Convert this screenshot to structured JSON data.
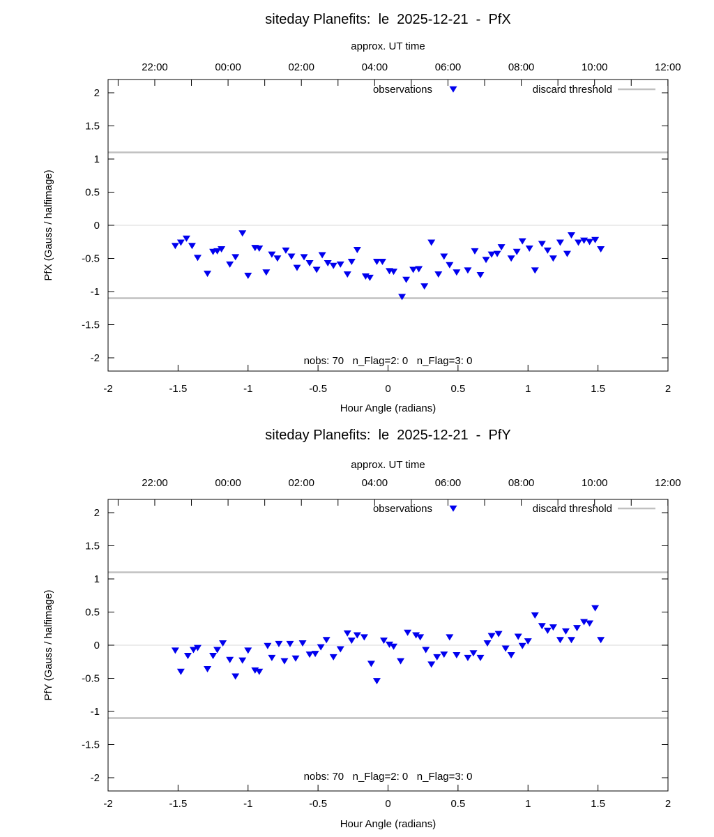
{
  "page": {
    "background": "#ffffff"
  },
  "chart_data": [
    {
      "type": "scatter",
      "title": "siteday Planefits:  le  2025-12-21  -  PfX",
      "top_axis": {
        "label": "approx. UT time",
        "tick_labels": [
          "22:00",
          "00:00",
          "02:00",
          "04:00",
          "06:00",
          "08:00",
          "10:00",
          "12:00"
        ]
      },
      "xlabel": "Hour Angle (radians)",
      "ylabel": "PfX (Gauss / halfimage)",
      "xlim": [
        -2,
        2
      ],
      "ylim": [
        -2.2,
        2.2
      ],
      "x_ticks": [
        -2,
        -1.5,
        -1,
        -0.5,
        0,
        0.5,
        1,
        1.5,
        2
      ],
      "x_tick_labels": [
        "-2",
        "-1.5",
        "-1",
        "-0.5",
        "0",
        "0.5",
        "1",
        "1.5",
        "2"
      ],
      "y_ticks": [
        2,
        1.5,
        1,
        0.5,
        0,
        -0.5,
        -1,
        -1.5,
        -2
      ],
      "y_tick_labels": [
        "2",
        "1.5",
        "1",
        "0.5",
        "0",
        "-0.5",
        "-1",
        "-1.5",
        "-2"
      ],
      "legend": [
        {
          "label": "observations",
          "swatch": "triangle-down-marker"
        },
        {
          "label": "discard threshold",
          "swatch": "gray-line"
        }
      ],
      "stats_label": "nobs: 70   n_Flag=2: 0   n_Flag=3: 0",
      "discard_thresholds": [
        1.1,
        -1.1
      ],
      "zero_line": 0,
      "marker_color": "#0000ee",
      "threshold_color": "#c0c0c0",
      "zero_line_color": "#d9d9d9",
      "grid": "off",
      "points": [
        [
          -1.52,
          -0.31
        ],
        [
          -1.48,
          -0.26
        ],
        [
          -1.44,
          -0.2
        ],
        [
          -1.4,
          -0.31
        ],
        [
          -1.36,
          -0.49
        ],
        [
          -1.29,
          -0.73
        ],
        [
          -1.25,
          -0.4
        ],
        [
          -1.22,
          -0.39
        ],
        [
          -1.19,
          -0.36
        ],
        [
          -1.13,
          -0.59
        ],
        [
          -1.09,
          -0.48
        ],
        [
          -1.04,
          -0.12
        ],
        [
          -1.0,
          -0.76
        ],
        [
          -0.95,
          -0.34
        ],
        [
          -0.92,
          -0.35
        ],
        [
          -0.87,
          -0.71
        ],
        [
          -0.83,
          -0.44
        ],
        [
          -0.79,
          -0.5
        ],
        [
          -0.73,
          -0.38
        ],
        [
          -0.69,
          -0.47
        ],
        [
          -0.65,
          -0.64
        ],
        [
          -0.6,
          -0.48
        ],
        [
          -0.56,
          -0.57
        ],
        [
          -0.51,
          -0.67
        ],
        [
          -0.47,
          -0.45
        ],
        [
          -0.43,
          -0.57
        ],
        [
          -0.39,
          -0.61
        ],
        [
          -0.34,
          -0.59
        ],
        [
          -0.29,
          -0.74
        ],
        [
          -0.26,
          -0.55
        ],
        [
          -0.22,
          -0.37
        ],
        [
          -0.16,
          -0.77
        ],
        [
          -0.13,
          -0.79
        ],
        [
          -0.08,
          -0.55
        ],
        [
          -0.04,
          -0.55
        ],
        [
          0.01,
          -0.69
        ],
        [
          0.04,
          -0.7
        ],
        [
          0.1,
          -1.08
        ],
        [
          0.13,
          -0.82
        ],
        [
          0.18,
          -0.67
        ],
        [
          0.22,
          -0.66
        ],
        [
          0.26,
          -0.92
        ],
        [
          0.31,
          -0.26
        ],
        [
          0.36,
          -0.74
        ],
        [
          0.4,
          -0.47
        ],
        [
          0.44,
          -0.6
        ],
        [
          0.49,
          -0.71
        ],
        [
          0.57,
          -0.68
        ],
        [
          0.62,
          -0.39
        ],
        [
          0.66,
          -0.75
        ],
        [
          0.7,
          -0.52
        ],
        [
          0.74,
          -0.44
        ],
        [
          0.78,
          -0.43
        ],
        [
          0.81,
          -0.33
        ],
        [
          0.88,
          -0.5
        ],
        [
          0.92,
          -0.4
        ],
        [
          0.96,
          -0.24
        ],
        [
          1.01,
          -0.35
        ],
        [
          1.05,
          -0.68
        ],
        [
          1.1,
          -0.28
        ],
        [
          1.14,
          -0.38
        ],
        [
          1.18,
          -0.5
        ],
        [
          1.23,
          -0.26
        ],
        [
          1.28,
          -0.43
        ],
        [
          1.31,
          -0.15
        ],
        [
          1.36,
          -0.26
        ],
        [
          1.4,
          -0.23
        ],
        [
          1.44,
          -0.25
        ],
        [
          1.48,
          -0.22
        ],
        [
          1.52,
          -0.36
        ]
      ]
    },
    {
      "type": "scatter",
      "title": "siteday Planefits:  le  2025-12-21  -  PfY",
      "top_axis": {
        "label": "approx. UT time",
        "tick_labels": [
          "22:00",
          "00:00",
          "02:00",
          "04:00",
          "06:00",
          "08:00",
          "10:00",
          "12:00"
        ]
      },
      "xlabel": "Hour Angle (radians)",
      "ylabel": "PfY (Gauss / halfimage)",
      "xlim": [
        -2,
        2
      ],
      "ylim": [
        -2.2,
        2.2
      ],
      "x_ticks": [
        -2,
        -1.5,
        -1,
        -0.5,
        0,
        0.5,
        1,
        1.5,
        2
      ],
      "x_tick_labels": [
        "-2",
        "-1.5",
        "-1",
        "-0.5",
        "0",
        "0.5",
        "1",
        "1.5",
        "2"
      ],
      "y_ticks": [
        2,
        1.5,
        1,
        0.5,
        0,
        -0.5,
        -1,
        -1.5,
        -2
      ],
      "y_tick_labels": [
        "2",
        "1.5",
        "1",
        "0.5",
        "0",
        "-0.5",
        "-1",
        "-1.5",
        "-2"
      ],
      "legend": [
        {
          "label": "observations",
          "swatch": "triangle-down-marker"
        },
        {
          "label": "discard threshold",
          "swatch": "gray-line"
        }
      ],
      "stats_label": "nobs: 70   n_Flag=2: 0   n_Flag=3: 0",
      "discard_thresholds": [
        1.1,
        -1.1
      ],
      "zero_line": 0,
      "marker_color": "#0000ee",
      "threshold_color": "#c0c0c0",
      "zero_line_color": "#d9d9d9",
      "grid": "off",
      "points": [
        [
          -1.52,
          -0.08
        ],
        [
          -1.48,
          -0.4
        ],
        [
          -1.43,
          -0.16
        ],
        [
          -1.39,
          -0.07
        ],
        [
          -1.36,
          -0.04
        ],
        [
          -1.29,
          -0.36
        ],
        [
          -1.25,
          -0.16
        ],
        [
          -1.22,
          -0.07
        ],
        [
          -1.18,
          0.03
        ],
        [
          -1.13,
          -0.22
        ],
        [
          -1.09,
          -0.47
        ],
        [
          -1.04,
          -0.23
        ],
        [
          -1.0,
          -0.08
        ],
        [
          -0.95,
          -0.38
        ],
        [
          -0.92,
          -0.4
        ],
        [
          -0.86,
          -0.01
        ],
        [
          -0.83,
          -0.19
        ],
        [
          -0.78,
          0.02
        ],
        [
          -0.74,
          -0.24
        ],
        [
          -0.7,
          0.02
        ],
        [
          -0.66,
          -0.2
        ],
        [
          -0.61,
          0.03
        ],
        [
          -0.56,
          -0.14
        ],
        [
          -0.52,
          -0.13
        ],
        [
          -0.48,
          -0.03
        ],
        [
          -0.44,
          0.08
        ],
        [
          -0.39,
          -0.18
        ],
        [
          -0.34,
          -0.06
        ],
        [
          -0.29,
          0.18
        ],
        [
          -0.26,
          0.07
        ],
        [
          -0.22,
          0.15
        ],
        [
          -0.17,
          0.12
        ],
        [
          -0.12,
          -0.28
        ],
        [
          -0.08,
          -0.54
        ],
        [
          -0.03,
          0.07
        ],
        [
          0.01,
          0.01
        ],
        [
          0.04,
          -0.02
        ],
        [
          0.09,
          -0.24
        ],
        [
          0.14,
          0.19
        ],
        [
          0.2,
          0.15
        ],
        [
          0.23,
          0.12
        ],
        [
          0.27,
          -0.07
        ],
        [
          0.31,
          -0.29
        ],
        [
          0.35,
          -0.18
        ],
        [
          0.4,
          -0.14
        ],
        [
          0.44,
          0.12
        ],
        [
          0.49,
          -0.15
        ],
        [
          0.57,
          -0.19
        ],
        [
          0.61,
          -0.12
        ],
        [
          0.66,
          -0.19
        ],
        [
          0.71,
          0.03
        ],
        [
          0.74,
          0.14
        ],
        [
          0.79,
          0.17
        ],
        [
          0.84,
          -0.05
        ],
        [
          0.88,
          -0.15
        ],
        [
          0.93,
          0.13
        ],
        [
          0.96,
          -0.01
        ],
        [
          1.0,
          0.06
        ],
        [
          1.05,
          0.45
        ],
        [
          1.1,
          0.29
        ],
        [
          1.14,
          0.22
        ],
        [
          1.18,
          0.27
        ],
        [
          1.23,
          0.08
        ],
        [
          1.27,
          0.21
        ],
        [
          1.31,
          0.08
        ],
        [
          1.35,
          0.26
        ],
        [
          1.4,
          0.35
        ],
        [
          1.44,
          0.33
        ],
        [
          1.48,
          0.56
        ],
        [
          1.52,
          0.08
        ]
      ]
    }
  ]
}
